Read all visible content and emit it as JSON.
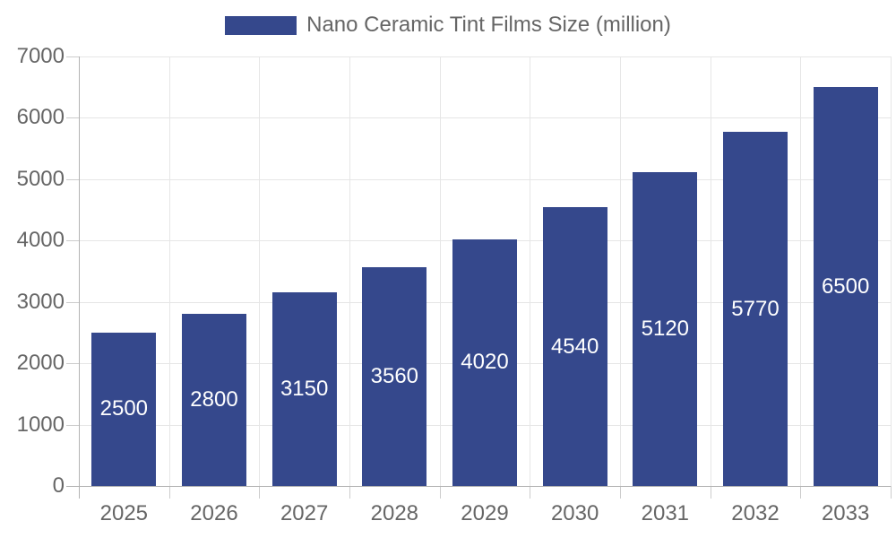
{
  "legend": {
    "label": "Nano Ceramic Tint Films Size (million)"
  },
  "colors": {
    "bar": "#35488c",
    "grid": "#e6e6e6",
    "tick": "#cccccc",
    "axis_border": "#b3b3b3",
    "axis_text": "#666666",
    "bar_label_text": "#ffffff",
    "background": "#ffffff"
  },
  "chart_data": {
    "type": "bar",
    "title": "",
    "xlabel": "",
    "ylabel": "",
    "categories": [
      "2025",
      "2026",
      "2027",
      "2028",
      "2029",
      "2030",
      "2031",
      "2032",
      "2033"
    ],
    "series": [
      {
        "name": "Nano Ceramic Tint Films Size (million)",
        "values": [
          2500,
          2800,
          3150,
          3560,
          4020,
          4540,
          5120,
          5770,
          6500
        ]
      }
    ],
    "value_labels": [
      "2500",
      "2800",
      "3150",
      "3560",
      "4020",
      "4540",
      "5120",
      "5770",
      "6500"
    ],
    "value_label_position": "inside-center",
    "ylim": [
      0,
      7000
    ],
    "ytick_step": 1000,
    "yticks": [
      "0",
      "1000",
      "2000",
      "3000",
      "4000",
      "5000",
      "6000",
      "7000"
    ],
    "grid": true,
    "legend_position": "top-center"
  }
}
